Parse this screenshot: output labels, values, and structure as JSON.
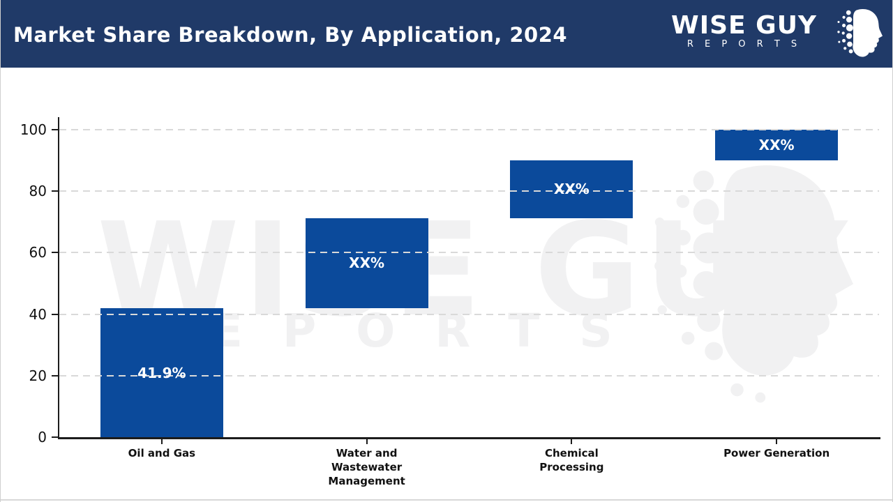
{
  "page": {
    "background": "#ffffff",
    "border_color": "#cfcfcf"
  },
  "header": {
    "bg_color": "#203A68",
    "title": "Market Share Breakdown, By Application, 2024",
    "logo": {
      "name": "WISE GUY",
      "sub": "R E P O R T S",
      "icon": "dotted-head-profile"
    }
  },
  "watermark": {
    "line1": "WISE GUY",
    "line2": "REPORTS",
    "color": "#f1f1f2"
  },
  "chart_data": {
    "type": "bar",
    "variant": "waterfall",
    "title": "Market Share Breakdown, By Application, 2024",
    "categories": [
      "Oil and Gas",
      "Water and Wastewater Management",
      "Chemical Processing",
      "Power Generation"
    ],
    "category_tick_labels": [
      "Oil and Gas",
      "Water and\nWastewater\nManagement",
      "Chemical\nProcessing",
      "Power Generation"
    ],
    "segments": [
      {
        "category": "Oil and Gas",
        "start": 0,
        "end": 41.9,
        "label": "41.9%"
      },
      {
        "category": "Water and Wastewater Management",
        "start": 41.9,
        "end": 71.3,
        "label": "XX%"
      },
      {
        "category": "Chemical Processing",
        "start": 71.3,
        "end": 90.0,
        "label": "XX%"
      },
      {
        "category": "Power Generation",
        "start": 90.0,
        "end": 100.0,
        "label": "XX%"
      }
    ],
    "xlabel": "",
    "ylabel": "",
    "ylim": [
      0,
      100
    ],
    "yticks": [
      0,
      20,
      40,
      60,
      80,
      100
    ],
    "grid": "horizontal-dashed",
    "grid_color": "#d9d9d9",
    "legend": "none",
    "bar_color": "#0B4A9B",
    "bar_label_color": "#FFFFFF",
    "axis_color": "#1c1c1c"
  }
}
